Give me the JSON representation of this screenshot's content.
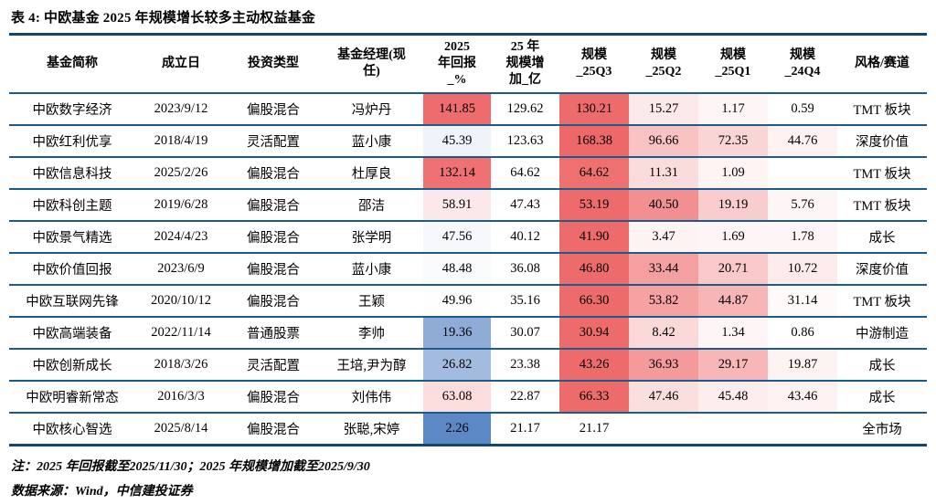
{
  "title": "表 4: 中欧基金 2025 年规模增长较多主动权益基金",
  "colors": {
    "border_outer": "#14466B",
    "border_inner": "#1A5C8C",
    "heat_red_strong": "#EE6B6C",
    "heat_blue_strong": "#5C88C5",
    "heat_blue_light": "#8FACD6"
  },
  "table": {
    "columns": [
      {
        "key": "name",
        "label": "基金简称",
        "width": 138
      },
      {
        "key": "inception",
        "label": "成立日",
        "width": 100
      },
      {
        "key": "type",
        "label": "投资类型",
        "width": 102
      },
      {
        "key": "manager",
        "label": "基金经理(现\n任)",
        "width": 113
      },
      {
        "key": "ret",
        "label": "2025\n年回报\n_%",
        "width": 74
      },
      {
        "key": "add",
        "label": "25 年\n规模增\n加_亿",
        "width": 75
      },
      {
        "key": "q3",
        "label": "规模\n_25Q3",
        "width": 76
      },
      {
        "key": "q2",
        "label": "规模\n_25Q2",
        "width": 76
      },
      {
        "key": "q1",
        "label": "规模\n_25Q1",
        "width": 76
      },
      {
        "key": "q4",
        "label": "规模\n_24Q4",
        "width": 76
      },
      {
        "key": "style",
        "label": "风格/赛道",
        "width": 98
      }
    ],
    "rows": [
      {
        "name": "中欧数字经济",
        "inception": "2023/9/12",
        "type": "偏股混合",
        "manager": "冯炉丹",
        "ret": "141.85",
        "add": "129.62",
        "q3": "130.21",
        "q2": "15.27",
        "q1": "1.17",
        "q4": "0.59",
        "style": "TMT 板块",
        "bg": {
          "ret": "#EE6B6E",
          "q3": "#EE6B6C",
          "q2": "#FCE9E9",
          "q1": "#FEF6F6",
          "q4": "#FFFFFF"
        }
      },
      {
        "name": "中欧红利优享",
        "inception": "2018/4/19",
        "type": "灵活配置",
        "manager": "蓝小康",
        "ret": "45.39",
        "add": "123.63",
        "q3": "168.38",
        "q2": "96.66",
        "q1": "72.35",
        "q4": "44.76",
        "style": "深度价值",
        "bg": {
          "ret": "#EFF3FA",
          "q3": "#ED6869",
          "q2": "#F8C2C2",
          "q1": "#FAD5D5",
          "q4": "#FEF1F1"
        }
      },
      {
        "name": "中欧信息科技",
        "inception": "2025/2/26",
        "type": "偏股混合",
        "manager": "杜厚良",
        "ret": "132.14",
        "add": "64.62",
        "q3": "64.62",
        "q2": "11.31",
        "q1": "1.09",
        "q4": "",
        "style": "TMT 板块",
        "bg": {
          "ret": "#F07173",
          "q3": "#EF7071",
          "q2": "#FBDCDC",
          "q1": "#FEF4F4",
          "q4": "#FFFFFF"
        }
      },
      {
        "name": "中欧科创主题",
        "inception": "2019/6/28",
        "type": "偏股混合",
        "manager": "邵洁",
        "ret": "58.91",
        "add": "47.43",
        "q3": "53.19",
        "q2": "40.50",
        "q1": "19.19",
        "q4": "5.76",
        "style": "TMT 板块",
        "bg": {
          "ret": "#FCE8E9",
          "q3": "#EE6B6C",
          "q2": "#F29091",
          "q1": "#F9CDCD",
          "q4": "#FEF6F6"
        }
      },
      {
        "name": "中欧景气精选",
        "inception": "2024/4/23",
        "type": "偏股混合",
        "manager": "张学明",
        "ret": "47.56",
        "add": "40.12",
        "q3": "41.90",
        "q2": "3.47",
        "q1": "1.69",
        "q4": "1.78",
        "style": "成长",
        "bg": {
          "ret": "#F6F8FC",
          "q3": "#EE6B6C",
          "q2": "#FEF3F3",
          "q1": "#FEF6F6",
          "q4": "#FEF6F6"
        }
      },
      {
        "name": "中欧价值回报",
        "inception": "2023/6/9",
        "type": "偏股混合",
        "manager": "蓝小康",
        "ret": "48.48",
        "add": "36.08",
        "q3": "46.80",
        "q2": "33.44",
        "q1": "20.71",
        "q4": "10.72",
        "style": "深度价值",
        "bg": {
          "ret": "#FAFBFD",
          "q3": "#EE6B6C",
          "q2": "#F4A0A1",
          "q1": "#F9C9C9",
          "q4": "#FDEBEB"
        }
      },
      {
        "name": "中欧互联网先锋",
        "inception": "2020/10/12",
        "type": "偏股混合",
        "manager": "王颖",
        "ret": "49.96",
        "add": "35.16",
        "q3": "66.30",
        "q2": "53.82",
        "q1": "44.87",
        "q4": "31.14",
        "style": "TMT 板块",
        "bg": {
          "ret": "#FEFEFF",
          "q3": "#EE6B6C",
          "q2": "#F5A2A3",
          "q1": "#F7B5B6",
          "q4": "#FEFAFA"
        }
      },
      {
        "name": "中欧高端装备",
        "inception": "2022/11/14",
        "type": "普通股票",
        "manager": "李帅",
        "ret": "19.36",
        "add": "30.07",
        "q3": "30.94",
        "q2": "8.42",
        "q1": "1.34",
        "q4": "0.86",
        "style": "中游制造",
        "bg": {
          "ret": "#8FACD6",
          "q3": "#EE6B6C",
          "q2": "#FBD9D9",
          "q1": "#FEF6F6",
          "q4": "#FFFFFF"
        }
      },
      {
        "name": "中欧创新成长",
        "inception": "2018/3/26",
        "type": "灵活配置",
        "manager": "王培,尹为醇",
        "ret": "26.82",
        "add": "23.38",
        "q3": "43.26",
        "q2": "36.93",
        "q1": "29.17",
        "q4": "19.87",
        "style": "成长",
        "bg": {
          "ret": "#A3BBDE",
          "q3": "#EE6B6C",
          "q2": "#F49A9B",
          "q1": "#F7B6B7",
          "q4": "#FDF2F2"
        }
      },
      {
        "name": "中欧明睿新常态",
        "inception": "2016/3/3",
        "type": "偏股混合",
        "manager": "刘伟伟",
        "ret": "63.08",
        "add": "22.87",
        "q3": "66.33",
        "q2": "47.46",
        "q1": "45.48",
        "q4": "43.46",
        "style": "成长",
        "bg": {
          "ret": "#FBDDDE",
          "q3": "#EE6B6C",
          "q2": "#FBDFDF",
          "q1": "#FDEDED",
          "q4": "#FDF1F1"
        }
      },
      {
        "name": "中欧核心智选",
        "inception": "2025/8/14",
        "type": "偏股混合",
        "manager": "张聪,宋婷",
        "ret": "2.26",
        "add": "21.17",
        "q3": "21.17",
        "q2": "",
        "q1": "",
        "q4": "",
        "style": "全市场",
        "bg": {
          "ret": "#5C88C5",
          "q3": "#FFFFFF",
          "q2": "#FFFFFF",
          "q1": "#FFFFFF",
          "q4": "#FFFFFF"
        }
      }
    ]
  },
  "notes": [
    "注：2025 年回报截至2025/11/30；2025 年规模增加截至2025/9/30",
    "数据来源：Wind，中信建投证券"
  ]
}
